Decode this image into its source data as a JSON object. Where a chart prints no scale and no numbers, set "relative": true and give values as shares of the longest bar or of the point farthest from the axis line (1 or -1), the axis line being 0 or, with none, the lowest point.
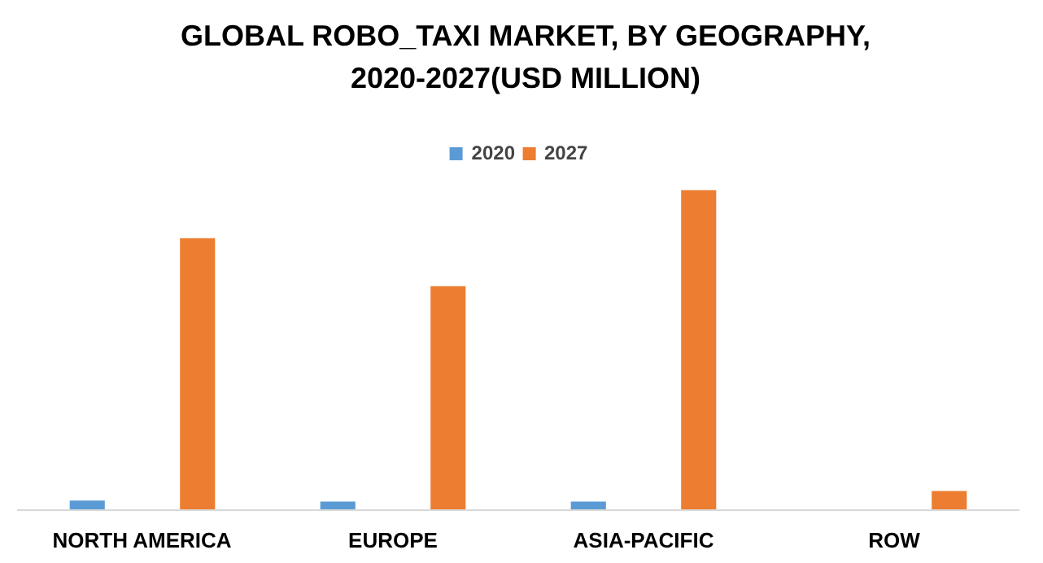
{
  "chart_data": {
    "type": "bar",
    "title": "GLOBAL ROBO_TAXI MARKET, BY GEOGRAPHY, 2020-2027(USD MILLION)",
    "categories": [
      "NORTH AMERICA",
      "EUROPE",
      "ASIA-PACIFIC",
      "ROW"
    ],
    "relative": true,
    "legend": "top",
    "series": [
      {
        "name": "2020",
        "color": "#5b9bd5",
        "values": [
          0.03,
          0.027,
          0.027,
          null
        ]
      },
      {
        "name": "2027",
        "color": "#ed7d31",
        "values": [
          0.85,
          0.7,
          1,
          0.06
        ]
      }
    ]
  }
}
